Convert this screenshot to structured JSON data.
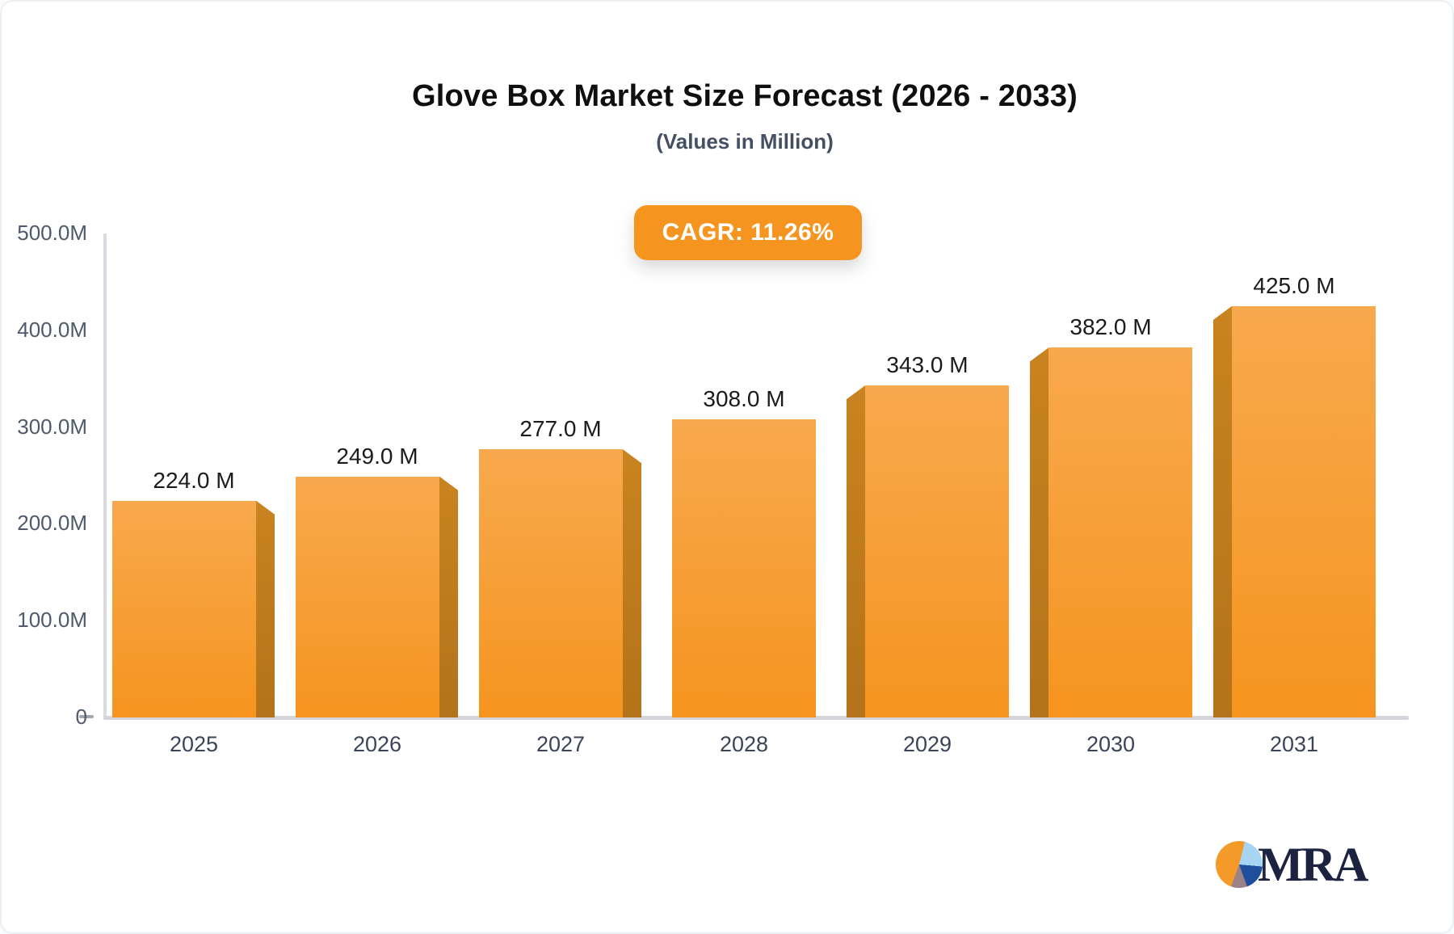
{
  "title": "Glove Box Market Size Forecast (2026 - 2033)",
  "subtitle": "(Values in Million)",
  "cagr_badge": "CAGR: 11.26%",
  "logo_text": "MRA",
  "chart_data": {
    "type": "bar",
    "title": "Glove Box Market Size Forecast (2026 - 2033)",
    "subtitle": "(Values in Million)",
    "annotation": "CAGR: 11.26%",
    "categories": [
      "2025",
      "2026",
      "2027",
      "2028",
      "2029",
      "2030",
      "2031"
    ],
    "values": [
      224,
      249,
      277,
      308,
      343,
      382,
      425
    ],
    "value_labels": [
      "224.0 M",
      "249.0 M",
      "277.0 M",
      "308.0 M",
      "343.0 M",
      "382.0 M",
      "425.0 M"
    ],
    "y_tick_values": [
      500,
      400,
      300,
      200,
      100,
      0
    ],
    "y_tick_labels": [
      "500.0M",
      "400.0M",
      "300.0M",
      "200.0M",
      "100.0M",
      "0"
    ],
    "ylim": [
      0,
      500
    ],
    "grid": "off",
    "legend": "none",
    "bar_style": "3d-extruded",
    "colors": {
      "bar_face_top": "#f8a84d",
      "bar_face_bottom": "#f6941e",
      "bar_side": "#ba771b",
      "badge_background": "#f5941e",
      "badge_text": "#ffffff",
      "axis_line": "#d9dbe0",
      "value_label_text": "#1b1b1b",
      "tick_label_text": "#4e5a6c"
    }
  }
}
